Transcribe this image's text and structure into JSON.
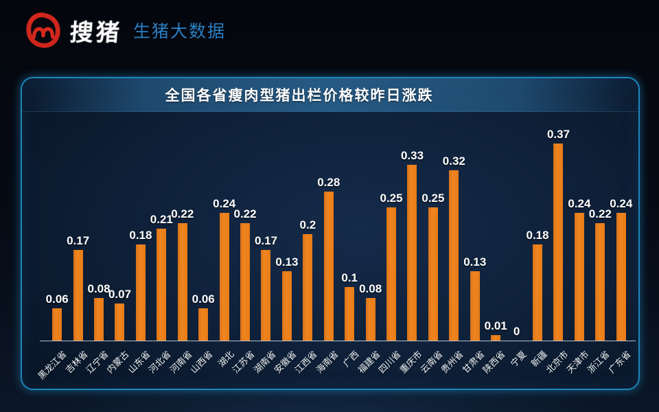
{
  "header": {
    "logo_text": "搜猪",
    "logo_subtitle": "生猪大数据",
    "logo_color": "#d6281e",
    "subtitle_color": "#2b7fc2"
  },
  "chart_data": {
    "type": "bar",
    "title": "全国各省瘦肉型猪出栏价格较昨日涨跌",
    "categories": [
      "黑龙江省",
      "吉林省",
      "辽宁省",
      "内蒙古",
      "山东省",
      "河北省",
      "河南省",
      "山西省",
      "湖北",
      "江苏省",
      "湖南省",
      "安徽省",
      "江西省",
      "海南省",
      "广西",
      "福建省",
      "四川省",
      "重庆市",
      "云南省",
      "贵州省",
      "甘肃省",
      "陕西省",
      "宁夏",
      "新疆",
      "北京市",
      "天津市",
      "浙江省",
      "广东省"
    ],
    "values": [
      0.06,
      0.17,
      0.08,
      0.07,
      0.18,
      0.21,
      0.22,
      0.06,
      0.24,
      0.22,
      0.17,
      0.13,
      0.2,
      0.28,
      0.1,
      0.08,
      0.25,
      0.33,
      0.25,
      0.32,
      0.13,
      0.01,
      0,
      0.18,
      0.37,
      0.24,
      0.22,
      0.24
    ],
    "xlabel": "",
    "ylabel": "",
    "ylim": [
      0,
      0.4
    ],
    "grid": false,
    "legend_position": "none",
    "bar_color": "#ea821e",
    "value_label_color": "#ffffff",
    "axis_line_color": "#c7d3df",
    "tick_label_color": "#eef3f8"
  }
}
